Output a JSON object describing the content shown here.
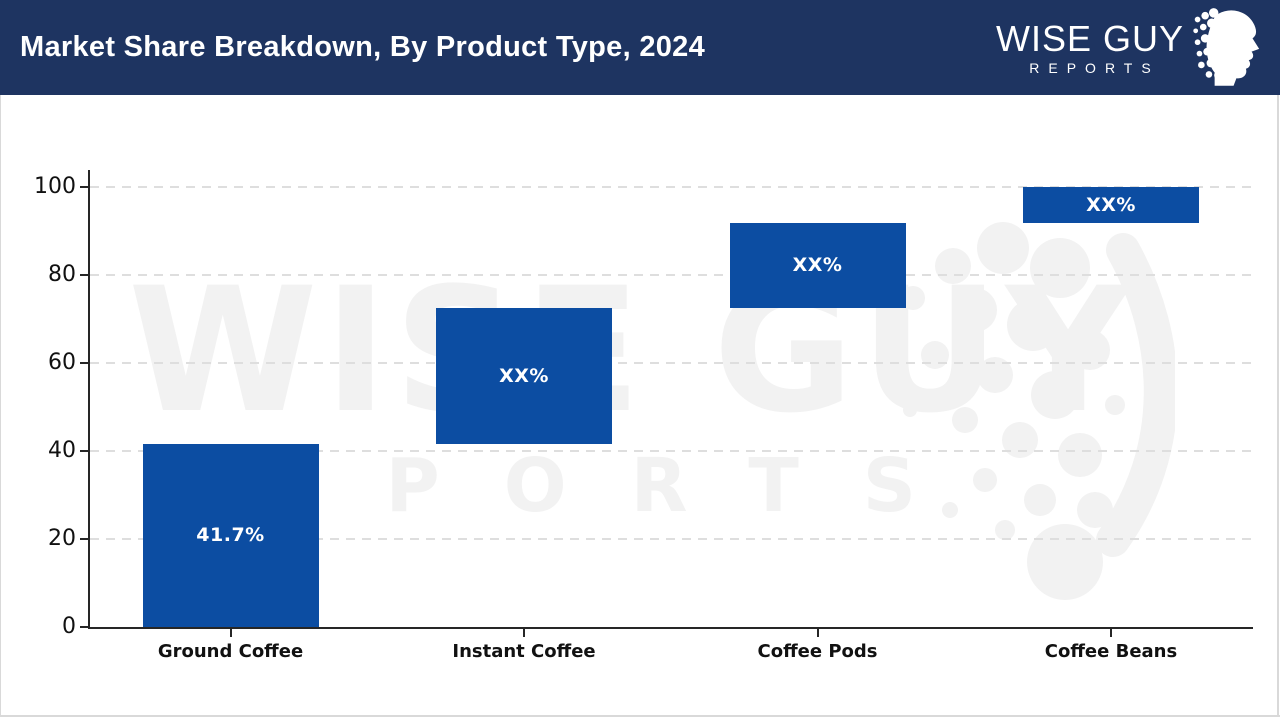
{
  "header": {
    "title": "Market Share Breakdown, By Product Type, 2024",
    "logo": {
      "name": "WISE GUY",
      "subtitle": "REPORTS"
    }
  },
  "watermark": {
    "line1": "WISE GUY",
    "line2": "REPORTS"
  },
  "colors": {
    "header_bg": "#1e3461",
    "bar": "#0c4da2",
    "bar_label": "#ffffff",
    "gridline": "#dedede",
    "axis": "#262626",
    "tick_text": "#111111",
    "watermark": "#f2f2f2",
    "border": "#d9d9d9"
  },
  "chart_data": {
    "type": "bar",
    "subtype": "waterfall",
    "title": "Market Share Breakdown, By Product Type, 2024",
    "categories": [
      "Ground Coffee",
      "Instant Coffee",
      "Coffee Pods",
      "Coffee Beans"
    ],
    "segments": [
      {
        "category": "Ground Coffee",
        "start": 0,
        "end": 41.7,
        "label": "41.7%"
      },
      {
        "category": "Instant Coffee",
        "start": 41.7,
        "end": 72.5,
        "label": "XX%"
      },
      {
        "category": "Coffee Pods",
        "start": 72.5,
        "end": 91.9,
        "label": "XX%"
      },
      {
        "category": "Coffee Beans",
        "start": 91.9,
        "end": 100,
        "label": "XX%"
      }
    ],
    "xlabel": "",
    "ylabel": "",
    "ylim": [
      0,
      100
    ],
    "yticks": [
      0,
      20,
      40,
      60,
      80,
      100
    ],
    "grid": "horizontal-dashed",
    "legend": "none"
  }
}
